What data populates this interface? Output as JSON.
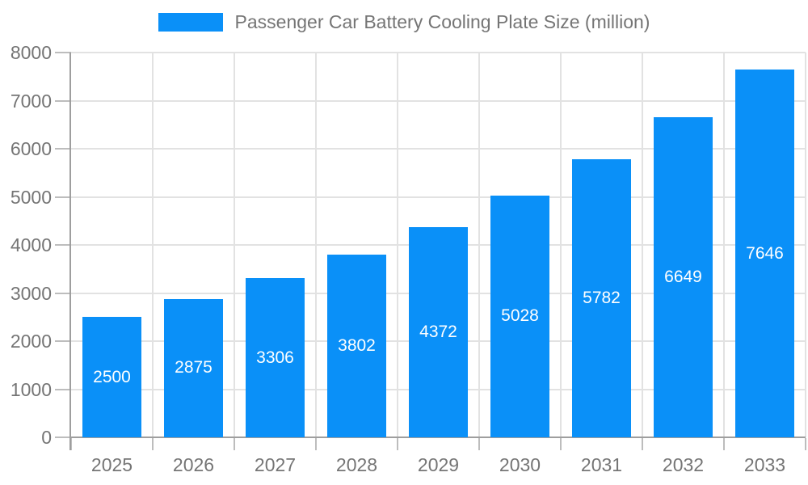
{
  "chart_data": {
    "type": "bar",
    "title": "Passenger Car Battery Cooling Plate Size (million)",
    "categories": [
      "2025",
      "2026",
      "2027",
      "2028",
      "2029",
      "2030",
      "2031",
      "2032",
      "2033"
    ],
    "values": [
      2500,
      2875,
      3306,
      3802,
      4372,
      5028,
      5782,
      6649,
      7646
    ],
    "ylim": [
      0,
      8000
    ],
    "yticks": [
      0,
      1000,
      2000,
      3000,
      4000,
      5000,
      6000,
      7000,
      8000
    ],
    "grid": true,
    "legend_position": "top-center",
    "value_label_position": "inside-center",
    "colors": {
      "bar": "#0a90f8",
      "bar_label": "#ffffff",
      "axis_line": "#9e9e9e",
      "tick": "#bdbdbd",
      "gridline": "#e2e2e2",
      "text": "#757575",
      "background": "#ffffff"
    }
  }
}
